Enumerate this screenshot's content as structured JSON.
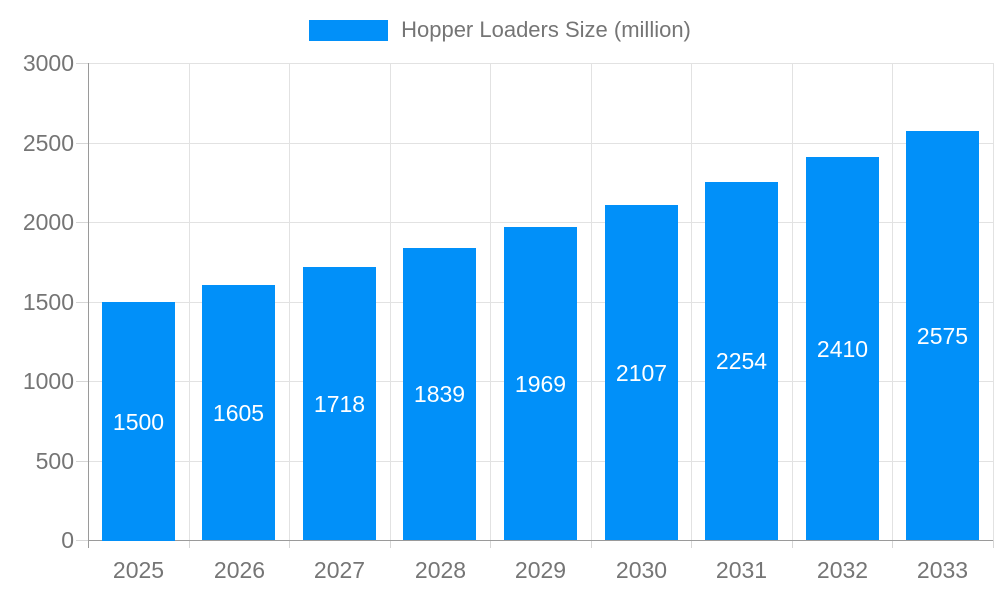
{
  "chart_data": {
    "type": "bar",
    "title": "Hopper Loaders Size (million)",
    "series": [
      {
        "name": "Hopper Loaders Size (million)",
        "values": [
          1500,
          1605,
          1718,
          1839,
          1969,
          2107,
          2254,
          2410,
          2575
        ]
      }
    ],
    "categories": [
      "2025",
      "2026",
      "2027",
      "2028",
      "2029",
      "2030",
      "2031",
      "2032",
      "2033"
    ],
    "xlabel": "",
    "ylabel": "",
    "ylim": [
      0,
      3000
    ],
    "y_ticks": [
      0,
      500,
      1000,
      1500,
      2000,
      2500,
      3000
    ],
    "grid": true,
    "legend_position": "top-center",
    "colors": {
      "bar": "#0190F9",
      "grid": "#E2E2E2",
      "axis": "#9A9A9A",
      "tick": "#D6D6D6",
      "text": "#757575",
      "bar_label": "#FFFFFF",
      "background": "#FFFFFF"
    }
  }
}
